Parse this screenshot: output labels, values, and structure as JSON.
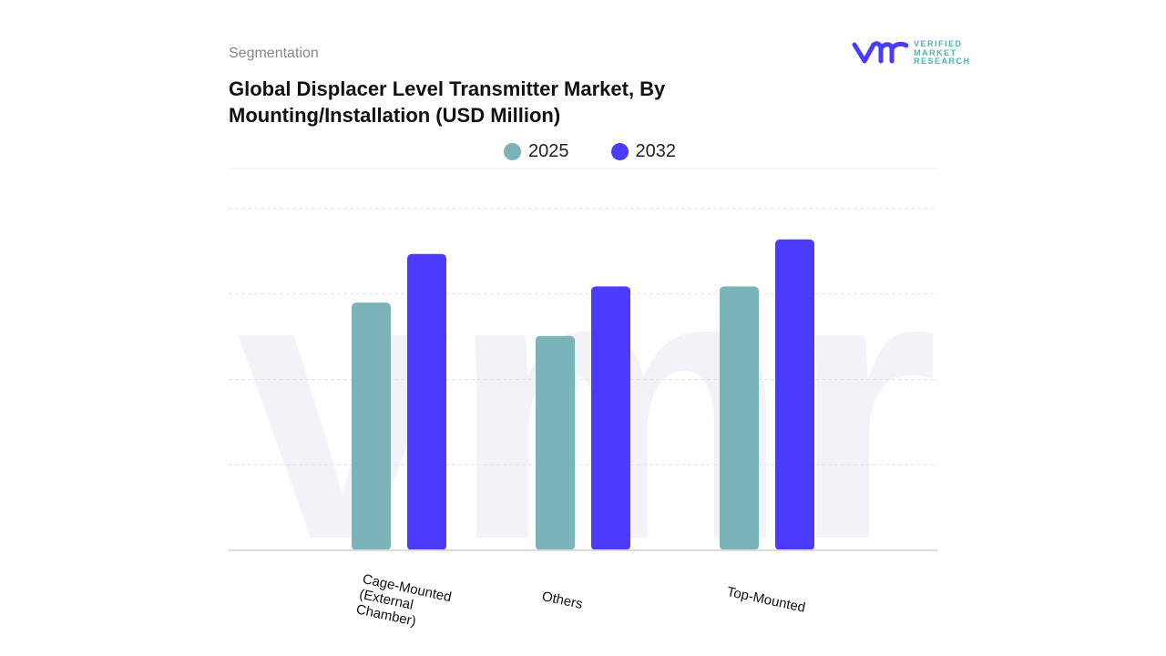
{
  "header": {
    "section": "Segmentation",
    "title_line1": "Global Displacer Level Transmitter Market, By",
    "title_line2": "Mounting/Installation (USD Million)"
  },
  "logo": {
    "line1": "VERIFIED",
    "line2": "MARKET",
    "line3": "RESEARCH"
  },
  "colors": {
    "s2025": "#7ab3b8",
    "s2032": "#4b3bff",
    "grid": "#e4e4e4"
  },
  "chart_data": {
    "type": "bar",
    "title": "Global Displacer Level Transmitter Market, By Mounting/Installation (USD Million)",
    "categories": [
      "Cage-Mounted\n(External\nChamber)",
      "Others",
      "Top-Mounted"
    ],
    "series": [
      {
        "name": "2025",
        "values": [
          290,
          251,
          309
        ]
      },
      {
        "name": "2032",
        "values": [
          347,
          309,
          364
        ]
      }
    ],
    "xlabel": "",
    "ylabel": "",
    "ylim": [
      0,
      400
    ],
    "grid": true,
    "legend": "top-center"
  }
}
